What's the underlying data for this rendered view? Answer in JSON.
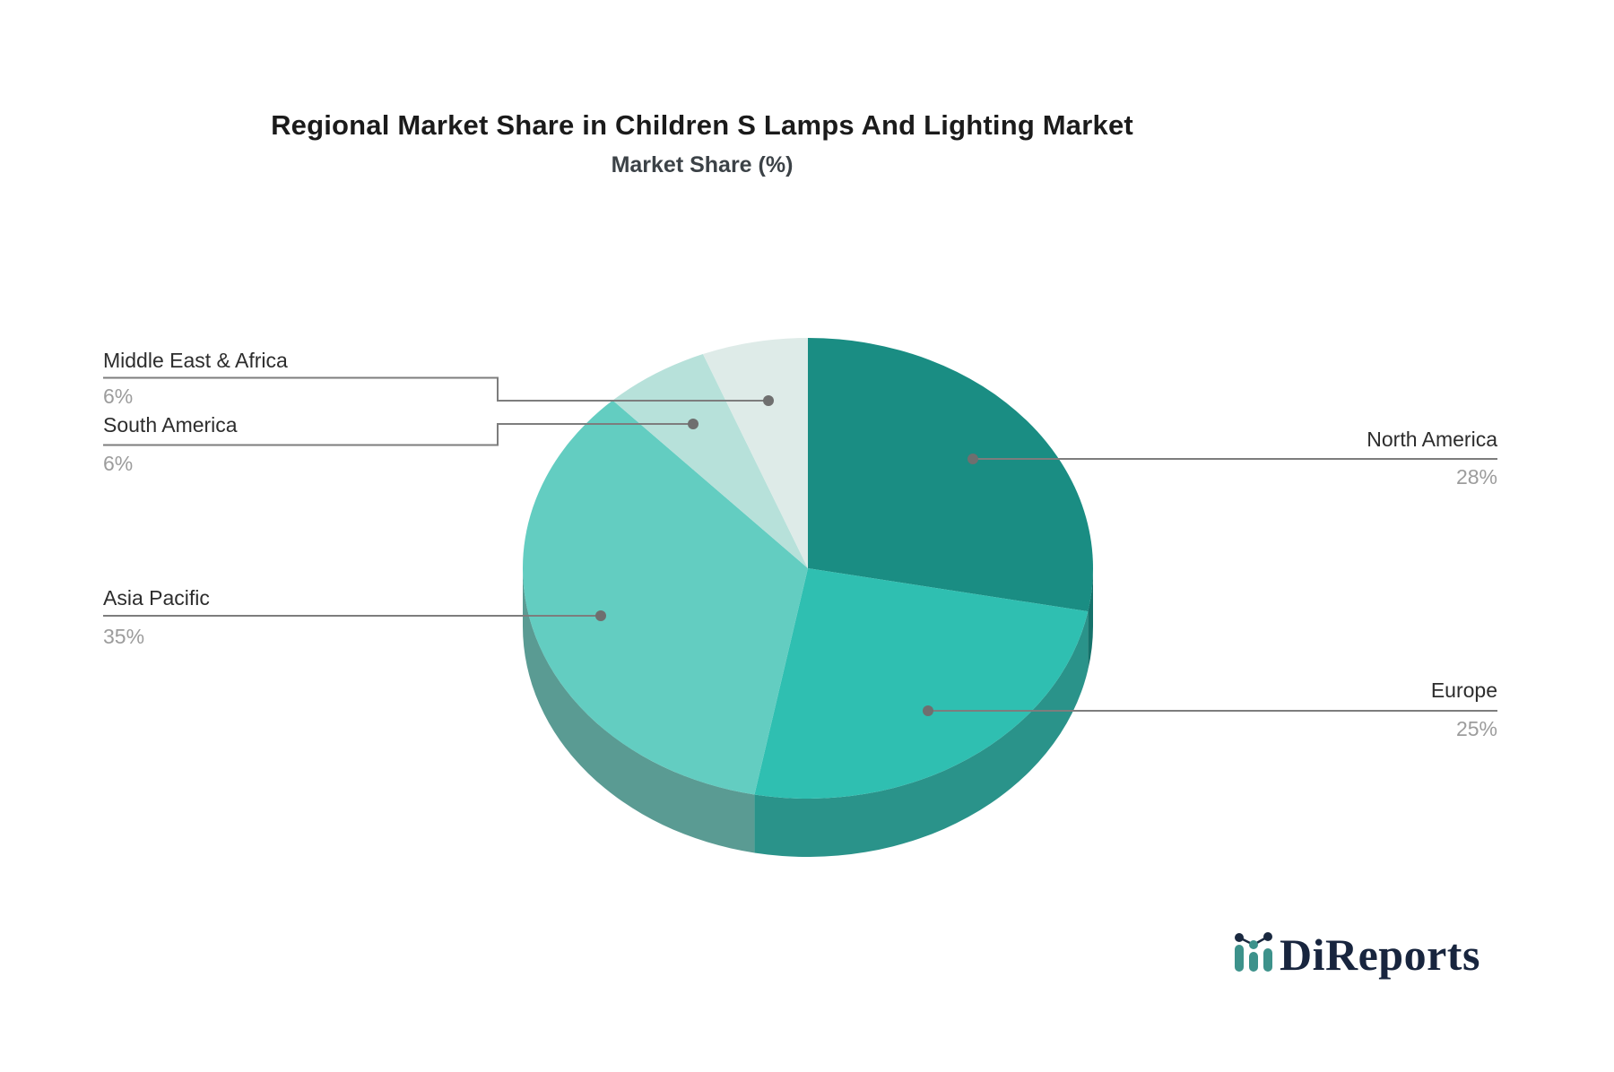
{
  "title": "Regional Market Share in Children S Lamps And Lighting Market",
  "subtitle": "Market Share (%)",
  "logo": {
    "text": "DiReports",
    "icon": "mini-bar-line-chart",
    "teal": "#3D928B",
    "navy": "#1A2940"
  },
  "chart_data": {
    "type": "pie",
    "style": "3d",
    "title": "Regional Market Share in Children S Lamps And Lighting Market",
    "subtitle": "Market Share (%)",
    "unit": "%",
    "direction": "clockwise",
    "start_angle": "top (12 o'clock)",
    "legend_position": "callout labels with leader lines and dots",
    "slices": [
      {
        "label": "North America",
        "value": 28,
        "pct_label": "28%",
        "color": "#1A8D83",
        "side_color": "#15726B",
        "label_side": "right"
      },
      {
        "label": "Europe",
        "value": 25,
        "pct_label": "25%",
        "color": "#2FBFB1",
        "side_color": "#2A938A",
        "label_side": "right"
      },
      {
        "label": "Asia Pacific",
        "value": 35,
        "pct_label": "35%",
        "color": "#63CDC1",
        "side_color": "#5A9B93",
        "label_side": "left"
      },
      {
        "label": "South America",
        "value": 6,
        "pct_label": "6%",
        "color": "#B7E1DA",
        "side_color": "#9BC2BC",
        "label_side": "left"
      },
      {
        "label": "Middle East & Africa",
        "value": 6,
        "pct_label": "6%",
        "color": "#DEEBE8",
        "side_color": "#BCC9C6",
        "label_side": "left"
      }
    ],
    "colors": {
      "leader_line": "#7D7D7D",
      "dot": "#6F6F6F",
      "label_text": "#2D2D2D",
      "pct_text": "#9C9C9C",
      "title_text": "#1B1B1B",
      "subtitle_text": "#3C4247"
    }
  }
}
